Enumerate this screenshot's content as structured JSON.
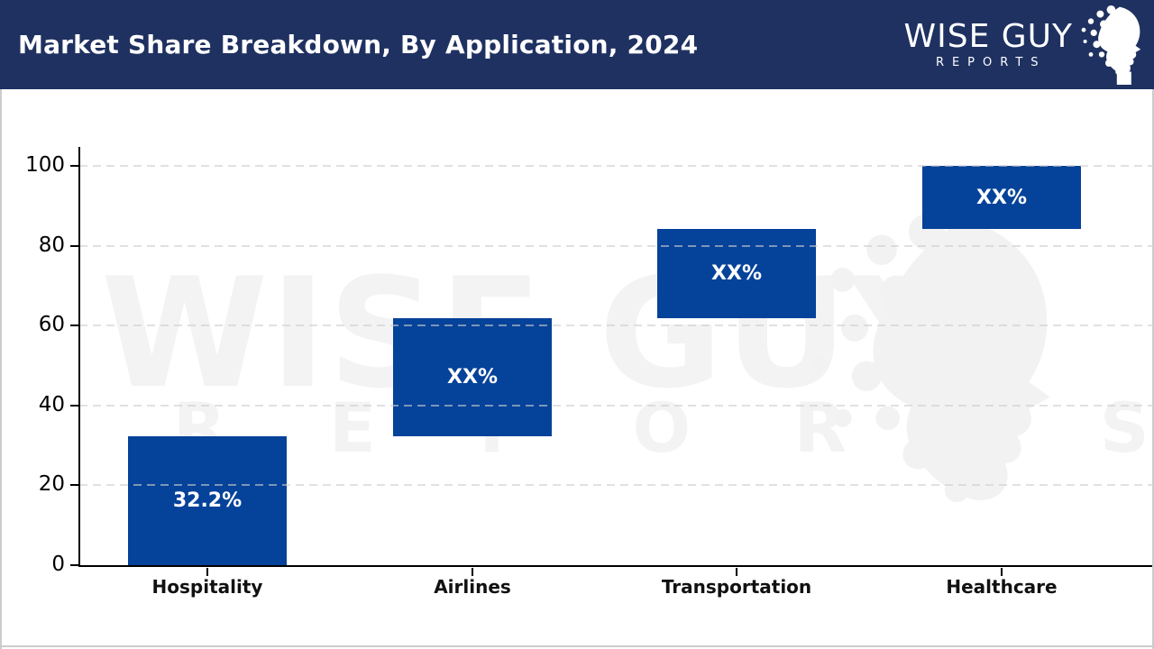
{
  "header": {
    "title": "Market Share Breakdown, By Application, 2024",
    "bg_color": "#1f3161",
    "logo": {
      "line1": "WISE GUY",
      "line2": "REPORTS"
    }
  },
  "watermark": {
    "line1": "WISE GUY",
    "line2": "R E P O R T S"
  },
  "chart_data": {
    "type": "bar",
    "subtype": "waterfall-floating-bars",
    "title": "Market Share Breakdown, By Application, 2024",
    "categories": [
      "Hospitality",
      "Airlines",
      "Transportation",
      "Healthcare"
    ],
    "series": [
      {
        "name": "Market Share %",
        "ranges": [
          [
            0,
            32.2
          ],
          [
            32.2,
            61.9
          ],
          [
            61.9,
            84.1
          ],
          [
            84.1,
            100
          ]
        ]
      }
    ],
    "bar_labels": [
      "32.2%",
      "XX%",
      "XX%",
      "XX%"
    ],
    "xlabel": "",
    "ylabel": "",
    "ylim": [
      0,
      100
    ],
    "yticks": [
      0,
      20,
      40,
      60,
      80,
      100
    ],
    "grid": "horizontal dashed",
    "legend": "none",
    "bar_color": "#05429a",
    "label_color": "#ffffff"
  }
}
